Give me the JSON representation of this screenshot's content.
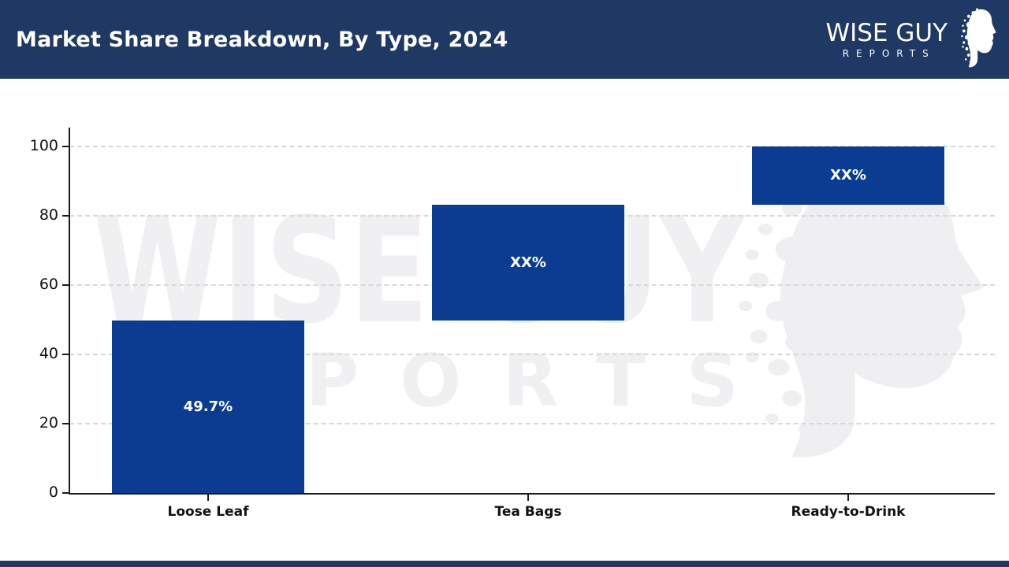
{
  "header": {
    "title": "Market Share Breakdown, By Type, 2024",
    "logo": {
      "brand_line1": "WISE GUY",
      "brand_line2": "REPORTS"
    }
  },
  "watermark": {
    "line1": "WISE GUY",
    "line2": "REPORTS"
  },
  "chart_data": {
    "type": "bar",
    "subtype": "waterfall-segments",
    "title": "Market Share Breakdown, By Type, 2024",
    "categories": [
      "Loose Leaf",
      "Tea Bags",
      "Ready-to-Drink"
    ],
    "segments": [
      {
        "category": "Loose Leaf",
        "start": 0,
        "end": 49.7,
        "label": "49.7%"
      },
      {
        "category": "Tea Bags",
        "start": 49.7,
        "end": 83.2,
        "label": "XX%"
      },
      {
        "category": "Ready-to-Drink",
        "start": 83.2,
        "end": 100,
        "label": "XX%"
      }
    ],
    "xlabel": "",
    "ylabel": "",
    "yticks": [
      0,
      20,
      40,
      60,
      80,
      100
    ],
    "ylim": [
      0,
      105
    ],
    "grid": "dashed-horizontal",
    "legend": "none",
    "bar_color": "#0a3d91",
    "bar_label_color": "#ffffff",
    "axis_color": "#1a1a1a",
    "grid_color": "#d9d9d9"
  },
  "colors": {
    "header_bg": "#1f3864",
    "footer_bg": "#1f3864",
    "page_bg": "#ffffff",
    "watermark": "#f0f0f2"
  }
}
